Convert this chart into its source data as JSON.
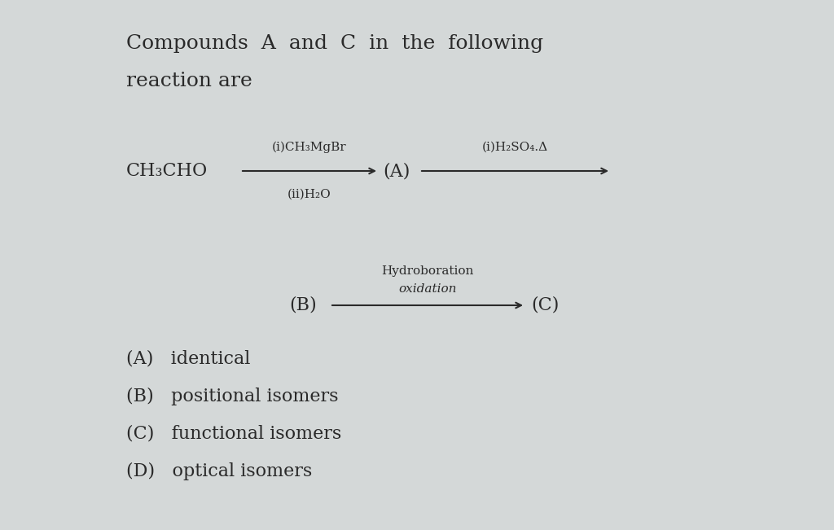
{
  "background_color": "#d4d8d8",
  "title_line1": "Compounds  A  and  C  in  the  following",
  "title_line2": "reaction are",
  "reactant": "CH₃CHO",
  "reagent1_top": "(i)CH₃MgBr",
  "reagent1_bot": "(ii)H₂O",
  "product_A": "(A)",
  "reagent2_top": "(i)H₂SO₄.Δ",
  "product_B_label": "(B)",
  "reagent3_top": "Hydroboration",
  "reagent3_bot": "oxidation",
  "product_C": "(C)",
  "options": [
    "(A)   identical",
    "(B)   positional isomers",
    "(C)   functional isomers",
    "(D)   optical isomers"
  ],
  "text_color": "#2a2a2a",
  "font_size_title": 18,
  "font_size_reaction": 15,
  "font_size_reagent": 11,
  "font_size_options": 16
}
